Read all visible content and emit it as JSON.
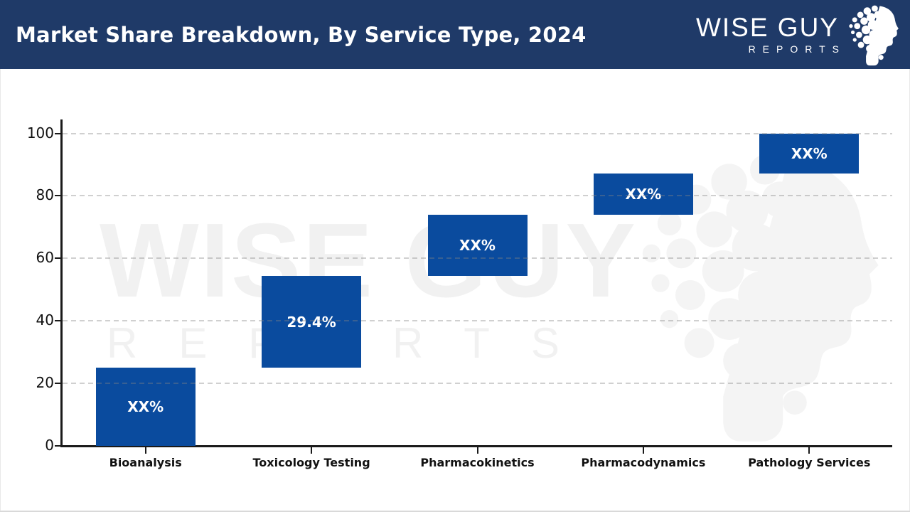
{
  "header": {
    "title": "Market Share Breakdown, By Service Type, 2024",
    "logo": {
      "name": "WISE GUY",
      "tagline": "REPORTS"
    }
  },
  "watermark": {
    "line1": "WISE GUY",
    "line2": "REPORTS"
  },
  "colors": {
    "header_bg": "#1f3a68",
    "bar": "#0a4b9e",
    "bar_label_text": "#ffffff",
    "grid": "#bdbdbd",
    "axis": "#1a1a1a",
    "watermark": "#f1f1f1"
  },
  "chart_data": {
    "type": "bar",
    "subtype": "floating-waterfall",
    "title": "Market Share Breakdown, By Service Type, 2024",
    "categories": [
      "Bioanalysis",
      "Toxicology Testing",
      "Pharmacokinetics",
      "Pharmacodynamics",
      "Pathology Services"
    ],
    "segments": [
      {
        "category": "Bioanalysis",
        "start": 0,
        "end": 25,
        "label": "XX%"
      },
      {
        "category": "Toxicology Testing",
        "start": 25,
        "end": 54.4,
        "label": "29.4%",
        "value": 29.4
      },
      {
        "category": "Pharmacokinetics",
        "start": 54.4,
        "end": 74,
        "label": "XX%"
      },
      {
        "category": "Pharmacodynamics",
        "start": 74,
        "end": 87.2,
        "label": "XX%"
      },
      {
        "category": "Pathology Services",
        "start": 87.2,
        "end": 100,
        "label": "XX%"
      }
    ],
    "yticks": [
      0,
      20,
      40,
      60,
      80,
      100
    ],
    "ylim": [
      0,
      104
    ],
    "xlabel": "",
    "ylabel": "",
    "grid": "dashed-horizontal",
    "legend": false
  }
}
